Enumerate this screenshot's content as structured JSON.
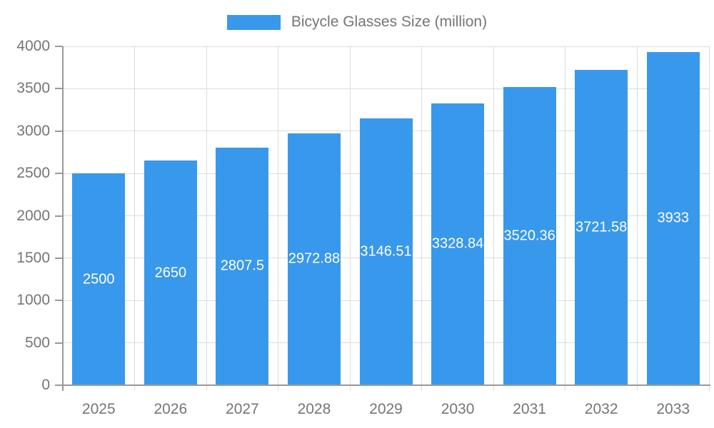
{
  "legend": {
    "label": "Bicycle Glasses Size (million)"
  },
  "colors": {
    "bar": "#3898EC",
    "axis": "#999999",
    "grid": "#DCDCDC",
    "tick_text": "#757575",
    "bar_label_text": "#FFFFFF",
    "background": "#FFFFFF"
  },
  "chart_data": {
    "type": "bar",
    "title": "",
    "categories": [
      "2025",
      "2026",
      "2027",
      "2028",
      "2029",
      "2030",
      "2031",
      "2032",
      "2033"
    ],
    "series": [
      {
        "name": "Bicycle Glasses Size (million)",
        "values": [
          2500,
          2650,
          2807.5,
          2972.88,
          3146.51,
          3328.84,
          3520.36,
          3721.58,
          3933
        ],
        "labels": [
          "2500",
          "2650",
          "2807.5",
          "2972.88",
          "3146.51",
          "3328.84",
          "3520.36",
          "3721.58",
          "3933"
        ],
        "color": "#3898EC"
      }
    ],
    "xlabel": "",
    "ylabel": "",
    "ylim": [
      0,
      4000
    ],
    "yticks": [
      0,
      500,
      1000,
      1500,
      2000,
      2500,
      3000,
      3500,
      4000
    ],
    "grid": true,
    "legend_position": "top"
  }
}
